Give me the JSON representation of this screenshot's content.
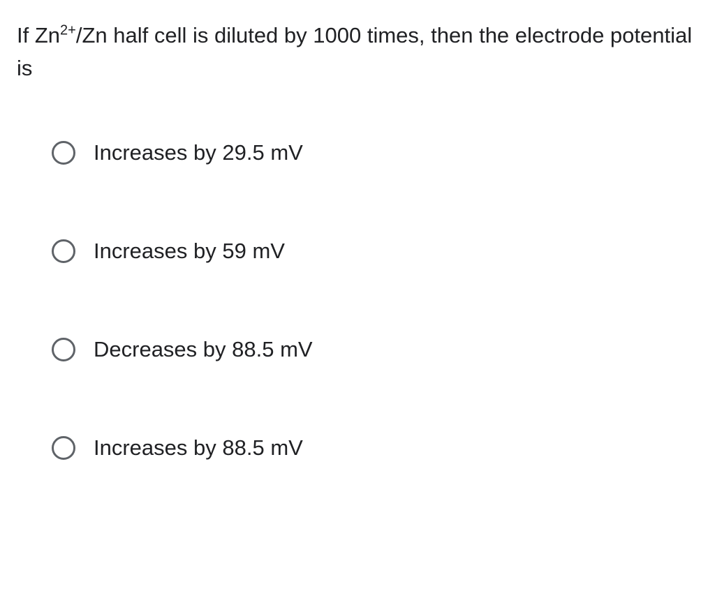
{
  "question": {
    "text_prefix": "If Zn",
    "sup": "2+",
    "text_suffix": "/Zn half cell is diluted by 1000 times, then the electrode potential is"
  },
  "options": [
    {
      "label": "Increases by 29.5 mV"
    },
    {
      "label": "Increases by 59 mV"
    },
    {
      "label": "Decreases by 88.5 mV"
    },
    {
      "label": "Increases by 88.5 mV"
    }
  ],
  "colors": {
    "text": "#202124",
    "radio_border": "#5f6368",
    "background": "#ffffff"
  },
  "typography": {
    "question_fontsize": 31,
    "option_fontsize": 31,
    "sup_fontsize": 20
  }
}
